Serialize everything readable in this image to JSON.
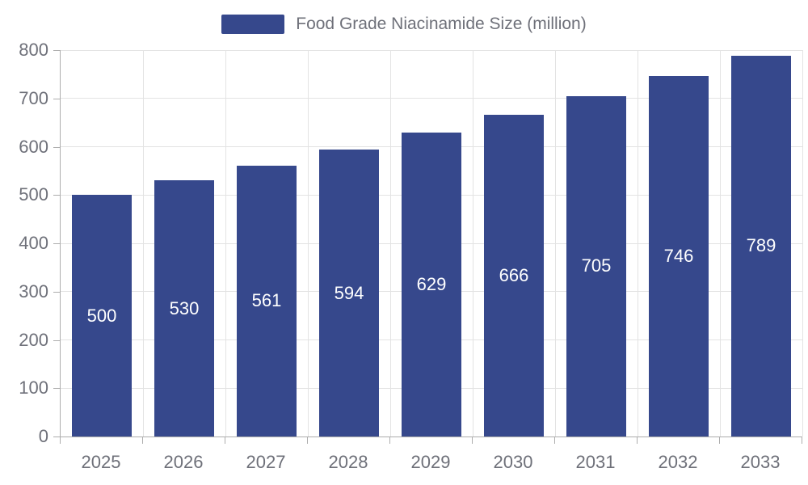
{
  "legend": {
    "label": "Food Grade Niacinamide Size (million)",
    "swatch_color": "#36488C"
  },
  "chart_data": {
    "type": "bar",
    "title": "",
    "xlabel": "",
    "ylabel": "",
    "series_name": "Food Grade Niacinamide Size (million)",
    "categories": [
      "2025",
      "2026",
      "2027",
      "2028",
      "2029",
      "2030",
      "2031",
      "2032",
      "2033"
    ],
    "values": [
      500,
      530,
      561,
      594,
      629,
      666,
      705,
      746,
      789
    ],
    "ylim": [
      0,
      800
    ],
    "yticks": [
      0,
      100,
      200,
      300,
      400,
      500,
      600,
      700,
      800
    ],
    "grid": true,
    "legend_position": "top",
    "bar_color": "#36488C",
    "value_label_color": "#ffffff",
    "axis_text_color": "#6E7079"
  }
}
